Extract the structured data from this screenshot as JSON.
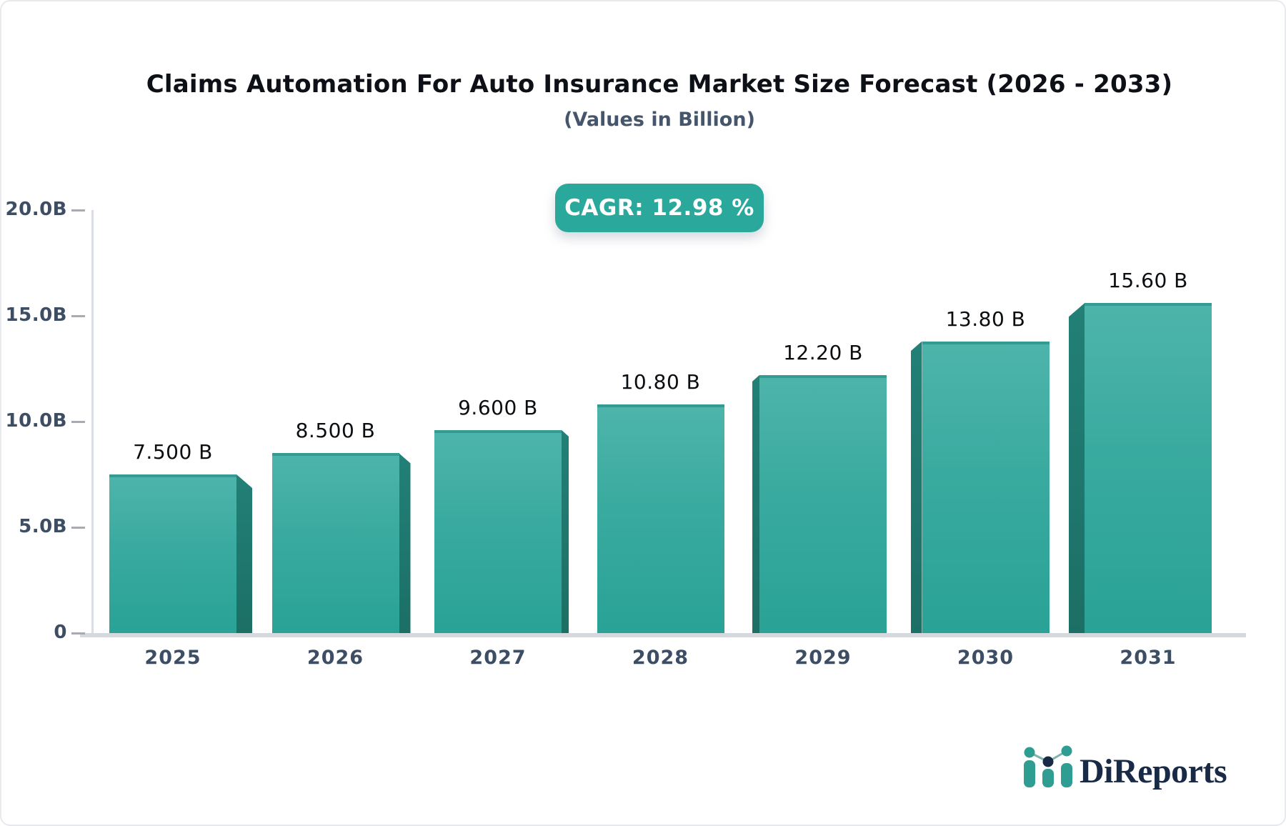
{
  "header": {
    "title": "Claims Automation For Auto Insurance Market Size Forecast (2026 - 2033)",
    "subtitle": "(Values in Billion)"
  },
  "badge": {
    "label": "CAGR: 12.98 %",
    "color": "#2aa89c"
  },
  "chart_data": {
    "type": "bar",
    "title": "Claims Automation For Auto Insurance Market Size Forecast (2026 - 2033)",
    "subtitle": "(Values in Billion)",
    "categories": [
      "2025",
      "2026",
      "2027",
      "2028",
      "2029",
      "2030",
      "2031"
    ],
    "values": [
      7.5,
      8.5,
      9.6,
      10.8,
      12.2,
      13.8,
      15.6
    ],
    "bar_labels": [
      "7.500 B",
      "8.500 B",
      "9.600 B",
      "10.80 B",
      "12.20 B",
      "13.80 B",
      "15.60 B"
    ],
    "unit": "Billion",
    "y_axis": {
      "range": [
        0,
        20
      ],
      "ticks": [
        {
          "label": "20.0B",
          "value": 20
        },
        {
          "label": "15.0B",
          "value": 15
        },
        {
          "label": "10.0B",
          "value": 10
        },
        {
          "label": "5.0B",
          "value": 5
        },
        {
          "label": "0",
          "value": 0
        }
      ]
    },
    "grid": false,
    "legend": false,
    "bar_style": "3d-perspective"
  },
  "colors": {
    "bar_face_top": "#4eb4ab",
    "bar_face_bottom": "#2aa296",
    "bar_side": "#1f7c70",
    "badge_bg": "#2aa89c",
    "axis_line": "#d5d8dd",
    "tick_mark": "#a6acb5",
    "axis_label": "#3d4d63",
    "value_label": "#0b0e11",
    "logo_navy": "#182a46",
    "logo_teal": "#2f9d91"
  },
  "logo": {
    "text": "DiReports"
  }
}
